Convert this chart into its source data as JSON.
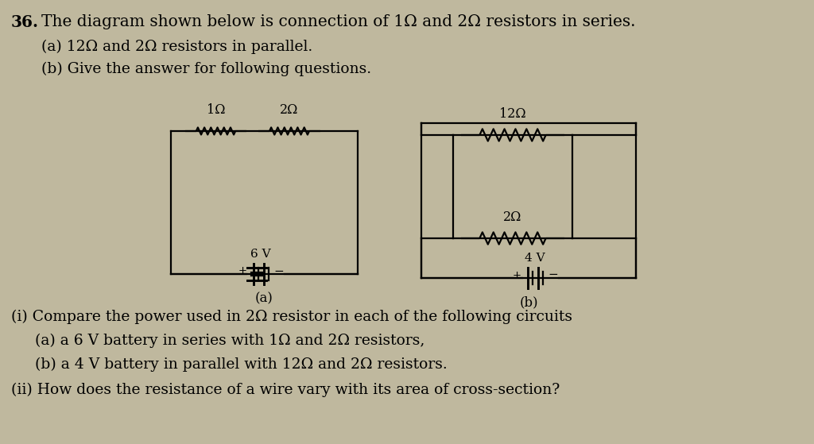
{
  "bg_color": "#bfb89e",
  "text_color": "#000000",
  "title_number": "36.",
  "title_text": "The diagram shown below is connection of 1Ω and 2Ω resistors in series.",
  "point_a_text": "(a) 12Ω and 2Ω resistors in parallel.",
  "point_b_text": "(b) Give the answer for following questions.",
  "question_i": "(i) Compare the power used in 2Ω resistor in each of the following circuits",
  "question_ia": "     (a) a 6 V battery in series with 1Ω and 2Ω resistors,",
  "question_ib": "     (b) a 4 V battery in parallel with 12Ω and 2Ω resistors.",
  "question_ii": "(ii) How does the resistance of a wire vary with its area of cross-section?",
  "circuit_a_label": "(a)",
  "circuit_b_label": "(b)"
}
